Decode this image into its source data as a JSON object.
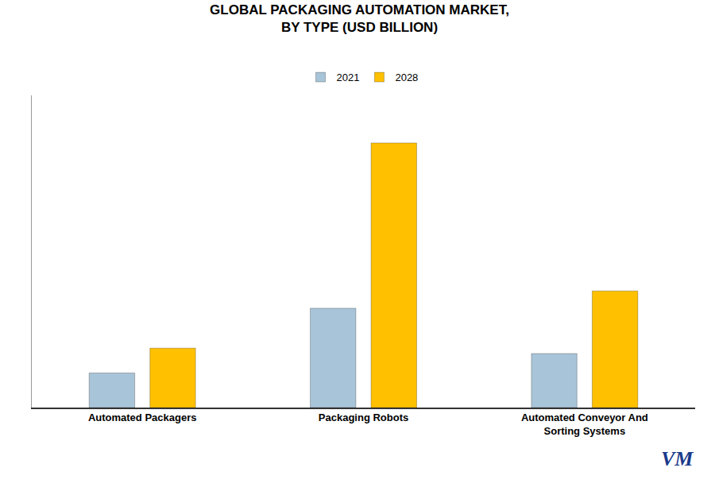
{
  "chart_data": {
    "type": "bar",
    "title": "GLOBAL PACKAGING AUTOMATION MARKET,\nBY TYPE (USD BILLION)",
    "categories": [
      "Automated Packagers",
      "Packaging Robots",
      "Automated Conveyor And\nSorting Systems"
    ],
    "series": [
      {
        "name": "2021",
        "color": "#A8C4D8",
        "values": [
          3.2,
          9.2,
          5.0
        ]
      },
      {
        "name": "2028",
        "color": "#FFC000",
        "values": [
          5.5,
          24.5,
          10.8
        ]
      }
    ],
    "ylim": [
      0,
      28.91
    ],
    "grid": false,
    "legend": "top",
    "tick_labels": "x",
    "annotations": [
      "VM"
    ]
  }
}
